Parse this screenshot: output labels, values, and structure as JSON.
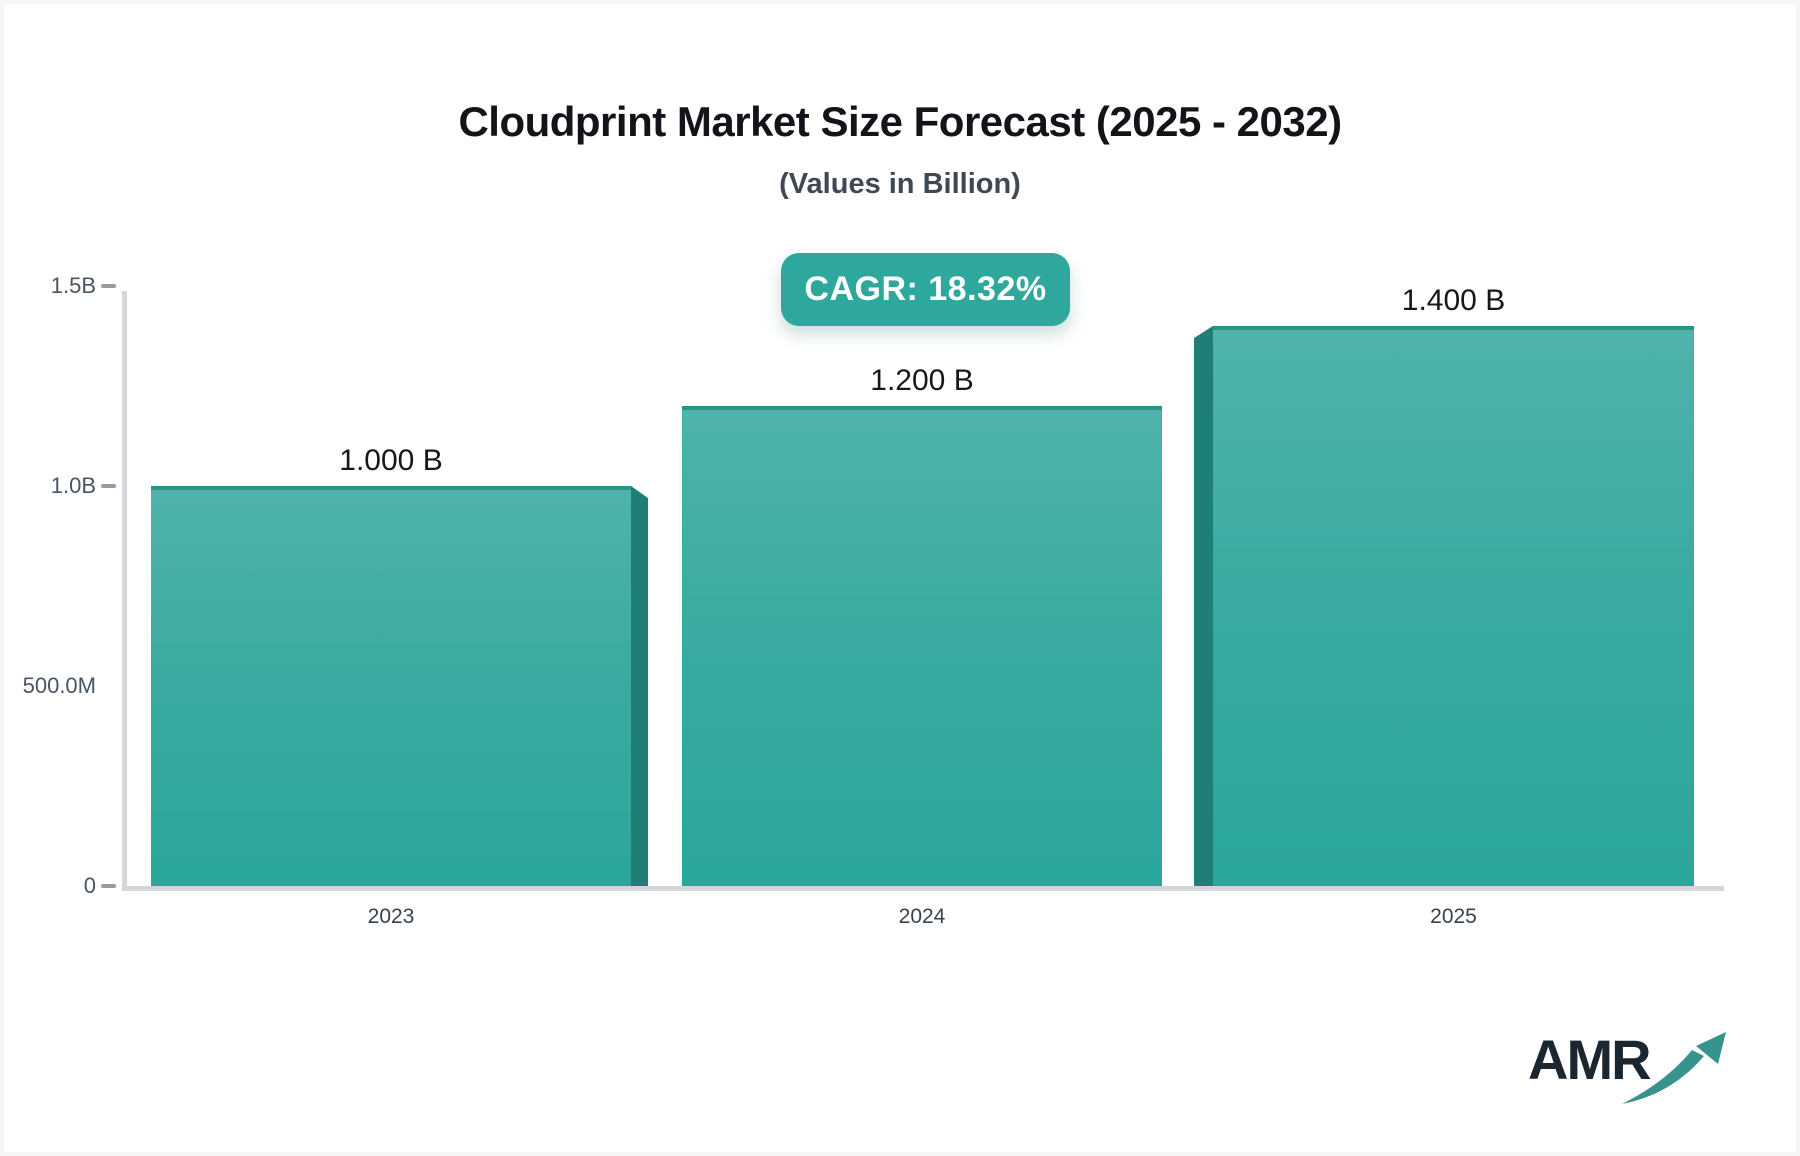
{
  "header": {
    "title": "Cloudprint Market Size Forecast (2025 - 2032)",
    "subtitle": "(Values in Billion)"
  },
  "cagr_badge": {
    "label": "CAGR: 18.32%",
    "bg_color": "#2EA89C",
    "text_color": "#ffffff"
  },
  "chart_data": {
    "type": "bar",
    "title": "Cloudprint Market Size Forecast (2025 - 2032)",
    "subtitle": "(Values in Billion)",
    "unit": "Billion",
    "categories": [
      "2023",
      "2024",
      "2025"
    ],
    "values": [
      1.0,
      1.2,
      1.4
    ],
    "value_labels": [
      "1.000 B",
      "1.200 B",
      "1.400 B"
    ],
    "cagr": "18.32%",
    "ylim": [
      0,
      1.5
    ],
    "yticks": [
      {
        "label": "1.5B",
        "value": 1.5
      },
      {
        "label": "1.0B",
        "value": 1.0
      },
      {
        "label": "500.0M",
        "value": 0.5
      },
      {
        "label": "0",
        "value": 0
      }
    ],
    "grid": false,
    "legend": "none",
    "colors": {
      "bar_gradient_top": "#4FB3AA",
      "bar_gradient_bottom": "#2AA69A",
      "bar_top_edge": "#2B948A",
      "bar_side_3d": "#1F7E76",
      "axis_line": "#D3D7DC",
      "tick_dash": "#969CA6",
      "tick_label": "#4A5564",
      "category_label": "#39414F",
      "value_label": "#17181A"
    }
  },
  "logo": {
    "text": "AMR",
    "text_color": "#1B2630",
    "arrow_color": "#37948C"
  }
}
